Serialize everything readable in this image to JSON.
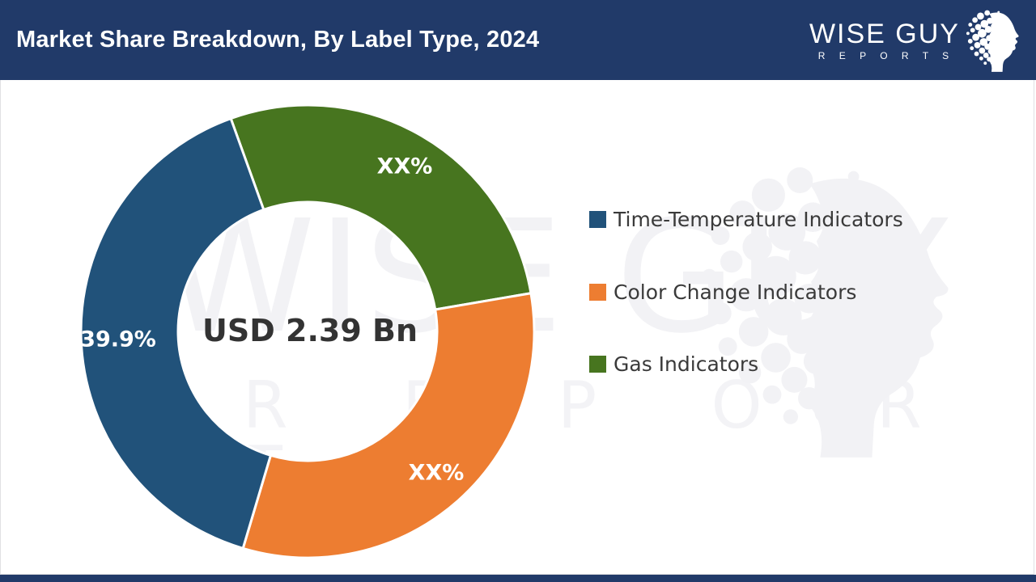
{
  "header": {
    "title": "Market Share Breakdown, By Label Type, 2024",
    "logo": {
      "line1": "WISE GUY",
      "line2": "R E P O R T S"
    }
  },
  "watermark": {
    "line1": "WISE GUY",
    "line2": "R E P O R T S"
  },
  "chart_data": {
    "type": "pie",
    "subtype": "donut",
    "title": "Market Share Breakdown, By Label Type, 2024",
    "center_label": "USD 2.39 Bn",
    "start_angle_deg": -19.8,
    "direction": "clockwise",
    "inner_radius_ratio": 0.57,
    "segments": [
      {
        "name": "Gas Indicators",
        "label": "XX%",
        "value_pct": 27.8,
        "color": "#47751F"
      },
      {
        "name": "Color Change Indicators",
        "label": "XX%",
        "value_pct": 32.3,
        "color": "#ED7D31"
      },
      {
        "name": "Time-Temperature Indicators",
        "label": "39.9%",
        "value_pct": 39.9,
        "color": "#21527A"
      }
    ]
  },
  "legend": {
    "items": [
      {
        "label": "Time-Temperature Indicators",
        "color": "#21527A"
      },
      {
        "label": "Color Change Indicators",
        "color": "#ED7D31"
      },
      {
        "label": "Gas Indicators",
        "color": "#47751F"
      }
    ]
  },
  "colors": {
    "header_bg": "#213A69",
    "footer_bg": "#213A69",
    "slice_separator": "#FFFFFF",
    "center_text": "#333333",
    "legend_text": "#3A3A3A",
    "watermark": "#F2F2F5"
  }
}
